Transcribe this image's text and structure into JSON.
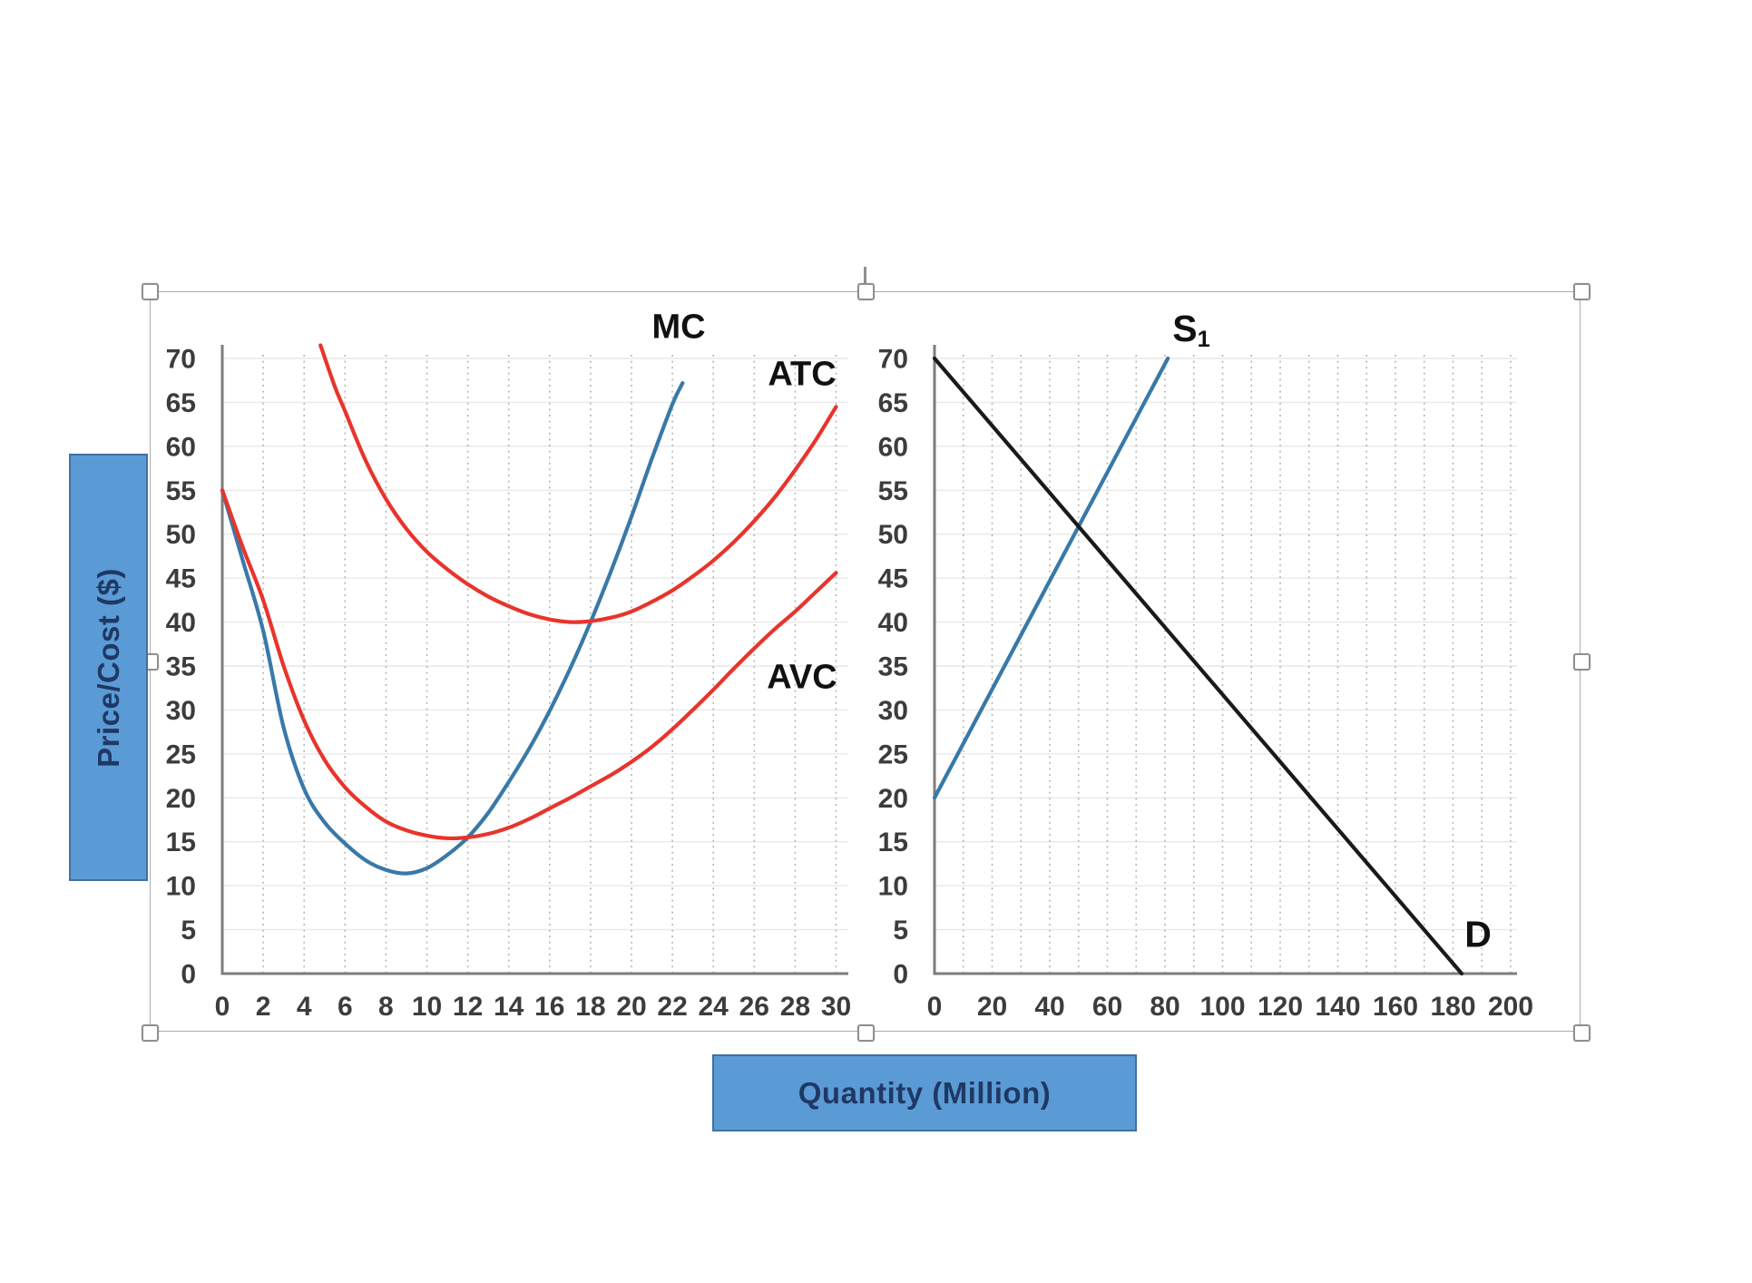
{
  "axis_boxes": {
    "y_label": "Price/Cost ($)",
    "x_label": "Quantity (Million)",
    "fill": "#5b9bd5",
    "border": "#41719c",
    "text_color": "#1f3864"
  },
  "colors": {
    "curve_blue": "#3879a8",
    "curve_red": "#e8342c",
    "demand_black": "#1a1a1a",
    "grid_dotted": "#b5b5b5",
    "grid_horizontal": "#e9e9e9",
    "axis": "#7d7d7d",
    "tick_text": "#3c3c3c",
    "selection_frame": "#adadad"
  },
  "chart_data": [
    {
      "type": "line",
      "title": "",
      "xlabel": "Quantity (Million)",
      "ylabel": "Price/Cost ($)",
      "xlim": [
        0,
        30.6
      ],
      "ylim": [
        0,
        71.8
      ],
      "x_ticks": [
        0,
        2,
        4,
        6,
        8,
        10,
        12,
        14,
        16,
        18,
        20,
        22,
        24,
        26,
        28,
        30
      ],
      "y_ticks": [
        0,
        5,
        10,
        15,
        20,
        25,
        30,
        35,
        40,
        45,
        50,
        55,
        60,
        65,
        70
      ],
      "grid": {
        "vertical_step": 2,
        "horizontal_step": 5,
        "vertical_style": "dotted"
      },
      "legend": "none",
      "series": [
        {
          "name": "MC",
          "color": "#3879a8",
          "points": [
            [
              0,
              55
            ],
            [
              1,
              47
            ],
            [
              2,
              39
            ],
            [
              3,
              28
            ],
            [
              4,
              21
            ],
            [
              5,
              17.2
            ],
            [
              6,
              14.8
            ],
            [
              7,
              12.9
            ],
            [
              8,
              11.8
            ],
            [
              9,
              11.4
            ],
            [
              10,
              12
            ],
            [
              11,
              13.5
            ],
            [
              12,
              15.5
            ],
            [
              13,
              18.3
            ],
            [
              14,
              21.8
            ],
            [
              15,
              25.6
            ],
            [
              16,
              29.9
            ],
            [
              17,
              34.7
            ],
            [
              18,
              40
            ],
            [
              19,
              45.8
            ],
            [
              20,
              52
            ],
            [
              21,
              58.6
            ],
            [
              22,
              64.8
            ],
            [
              22.5,
              67.2
            ]
          ]
        },
        {
          "name": "ATC",
          "color": "#e8342c",
          "points": [
            [
              4.8,
              71.5
            ],
            [
              5.5,
              66.8
            ],
            [
              6,
              64
            ],
            [
              7,
              58.4
            ],
            [
              8,
              54
            ],
            [
              9,
              50.6
            ],
            [
              10,
              48
            ],
            [
              11,
              46
            ],
            [
              12,
              44.3
            ],
            [
              13,
              42.9
            ],
            [
              14,
              41.8
            ],
            [
              15,
              40.9
            ],
            [
              16,
              40.3
            ],
            [
              17,
              40
            ],
            [
              18,
              40.1
            ],
            [
              19,
              40.5
            ],
            [
              20,
              41.2
            ],
            [
              21,
              42.3
            ],
            [
              22,
              43.6
            ],
            [
              23,
              45.2
            ],
            [
              24,
              47
            ],
            [
              25,
              49.1
            ],
            [
              26,
              51.5
            ],
            [
              27,
              54.2
            ],
            [
              28,
              57.3
            ],
            [
              29,
              60.7
            ],
            [
              30,
              64.5
            ]
          ]
        },
        {
          "name": "AVC",
          "color": "#e8342c",
          "points": [
            [
              0,
              55
            ],
            [
              1,
              48.5
            ],
            [
              2,
              42.5
            ],
            [
              3,
              35
            ],
            [
              4,
              28.8
            ],
            [
              5,
              24.3
            ],
            [
              6,
              21.2
            ],
            [
              7,
              19
            ],
            [
              8,
              17.3
            ],
            [
              9,
              16.3
            ],
            [
              10,
              15.7
            ],
            [
              11,
              15.4
            ],
            [
              12,
              15.5
            ],
            [
              13,
              15.9
            ],
            [
              14,
              16.6
            ],
            [
              15,
              17.6
            ],
            [
              16,
              18.8
            ],
            [
              17,
              20
            ],
            [
              18,
              21.3
            ],
            [
              19,
              22.6
            ],
            [
              20,
              24.1
            ],
            [
              21,
              25.8
            ],
            [
              22,
              27.8
            ],
            [
              23,
              30
            ],
            [
              24,
              32.3
            ],
            [
              25,
              34.7
            ],
            [
              26,
              37
            ],
            [
              27,
              39.2
            ],
            [
              28,
              41.2
            ],
            [
              29,
              43.4
            ],
            [
              30,
              45.6
            ]
          ]
        }
      ],
      "annotations": [
        {
          "text": "MC"
        },
        {
          "text": "ATC"
        },
        {
          "text": "AVC"
        }
      ]
    },
    {
      "type": "line",
      "title": "",
      "xlabel": "Quantity (Million)",
      "ylabel": "Price/Cost ($)",
      "xlim": [
        0,
        202
      ],
      "ylim": [
        0,
        71.8
      ],
      "x_ticks": [
        0,
        20,
        40,
        60,
        80,
        100,
        120,
        140,
        160,
        180,
        200
      ],
      "y_ticks": [
        0,
        5,
        10,
        15,
        20,
        25,
        30,
        35,
        40,
        45,
        50,
        55,
        60,
        65,
        70
      ],
      "grid": {
        "vertical_step": 10,
        "horizontal_step": 5,
        "vertical_style": "dotted"
      },
      "legend": "none",
      "series": [
        {
          "name": "S1",
          "color": "#3879a8",
          "points": [
            [
              0,
              20
            ],
            [
              81,
              70
            ]
          ]
        },
        {
          "name": "D",
          "color": "#1a1a1a",
          "points": [
            [
              0,
              70
            ],
            [
              183,
              0
            ]
          ]
        }
      ],
      "annotations": [
        {
          "text": "S",
          "sub": "1"
        },
        {
          "text": "D"
        }
      ]
    }
  ]
}
